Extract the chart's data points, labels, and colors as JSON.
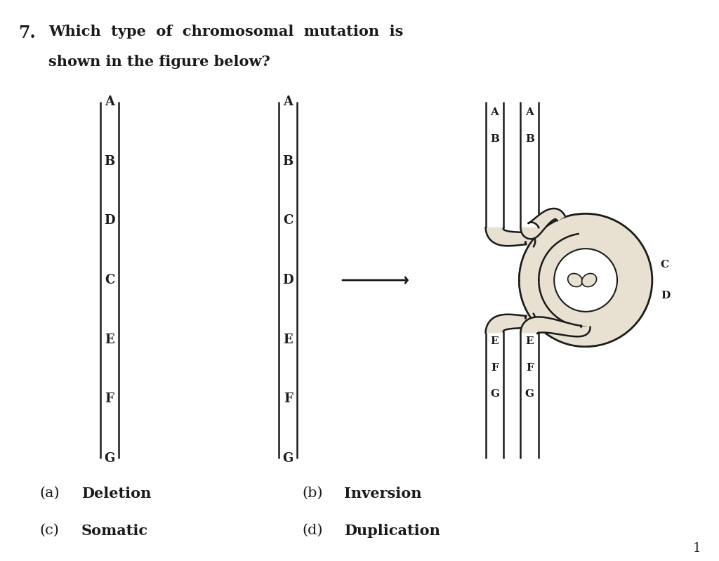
{
  "background_color": "#ffffff",
  "question_number": "7.",
  "chromosome1_labels": [
    "A",
    "B",
    "D",
    "C",
    "E",
    "F",
    "G"
  ],
  "chromosome2_labels": [
    "A",
    "B",
    "C",
    "D",
    "E",
    "F",
    "G"
  ],
  "left_top_labels": [
    "A",
    "B"
  ],
  "left_bot_labels": [
    "E",
    "F",
    "G"
  ],
  "right_top_labels": [
    "A",
    "B"
  ],
  "right_bot_labels": [
    "E",
    "F",
    "G"
  ],
  "loop_right_labels": [
    "C",
    "D"
  ],
  "options": [
    {
      "label": "(a)",
      "text": "Deletion"
    },
    {
      "label": "(b)",
      "text": "Inversion"
    },
    {
      "label": "(c)",
      "text": "Somatic"
    },
    {
      "label": "(d)",
      "text": "Duplication"
    }
  ],
  "page_number": "1",
  "line_color": "#1a1a1a",
  "fill_color": "#e8e0d0",
  "text_color": "#1a1a1a"
}
